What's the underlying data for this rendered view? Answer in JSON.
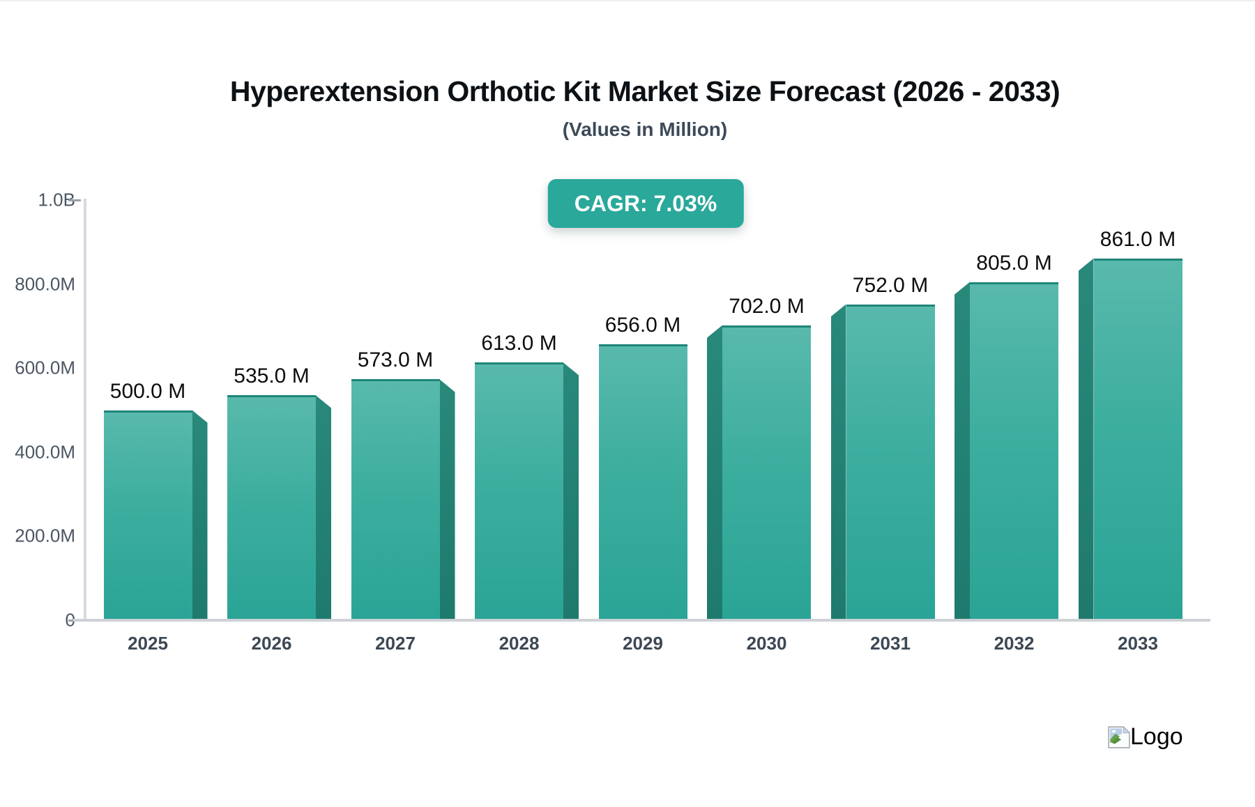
{
  "header": {
    "title": "Hyperextension Orthotic Kit Market Size Forecast (2026 - 2033)",
    "subtitle": "(Values in Million)"
  },
  "badge": {
    "label": "CAGR: 7.03%",
    "bg_color": "#2aa89a",
    "text_color": "#ffffff"
  },
  "chart_data": {
    "type": "bar",
    "title": "Hyperextension Orthotic Kit Market Size Forecast (2026 - 2033)",
    "subtitle": "(Values in Million)",
    "categories": [
      "2025",
      "2026",
      "2027",
      "2028",
      "2029",
      "2030",
      "2031",
      "2032",
      "2033"
    ],
    "values": [
      500.0,
      535.0,
      573.0,
      613.0,
      656.0,
      702.0,
      752.0,
      805.0,
      861.0
    ],
    "value_labels": [
      "500.0 M",
      "535.0 M",
      "573.0 M",
      "613.0 M",
      "656.0 M",
      "702.0 M",
      "752.0 M",
      "805.0 M",
      "861.0 M"
    ],
    "unit": "Million",
    "xlabel": "",
    "ylabel": "",
    "ylim": [
      0,
      1000
    ],
    "y_ticks": [
      {
        "value": 1000,
        "label": "1.0B"
      },
      {
        "value": 800,
        "label": "800.0M"
      },
      {
        "value": 600,
        "label": "600.0M"
      },
      {
        "value": 400,
        "label": "400.0M"
      },
      {
        "value": 200,
        "label": "200.0M"
      },
      {
        "value": 0,
        "label": "0"
      }
    ],
    "grid": false,
    "legend": null,
    "style_3d": true,
    "bar_color_top": "#58b9ac",
    "bar_color_bottom": "#2aa496",
    "bar_side_color": "#1e7a6d",
    "bar_top_edge_color": "#1d8678"
  },
  "footer": {
    "logo_label": "Logo",
    "logo_icon": "broken-image-icon"
  }
}
